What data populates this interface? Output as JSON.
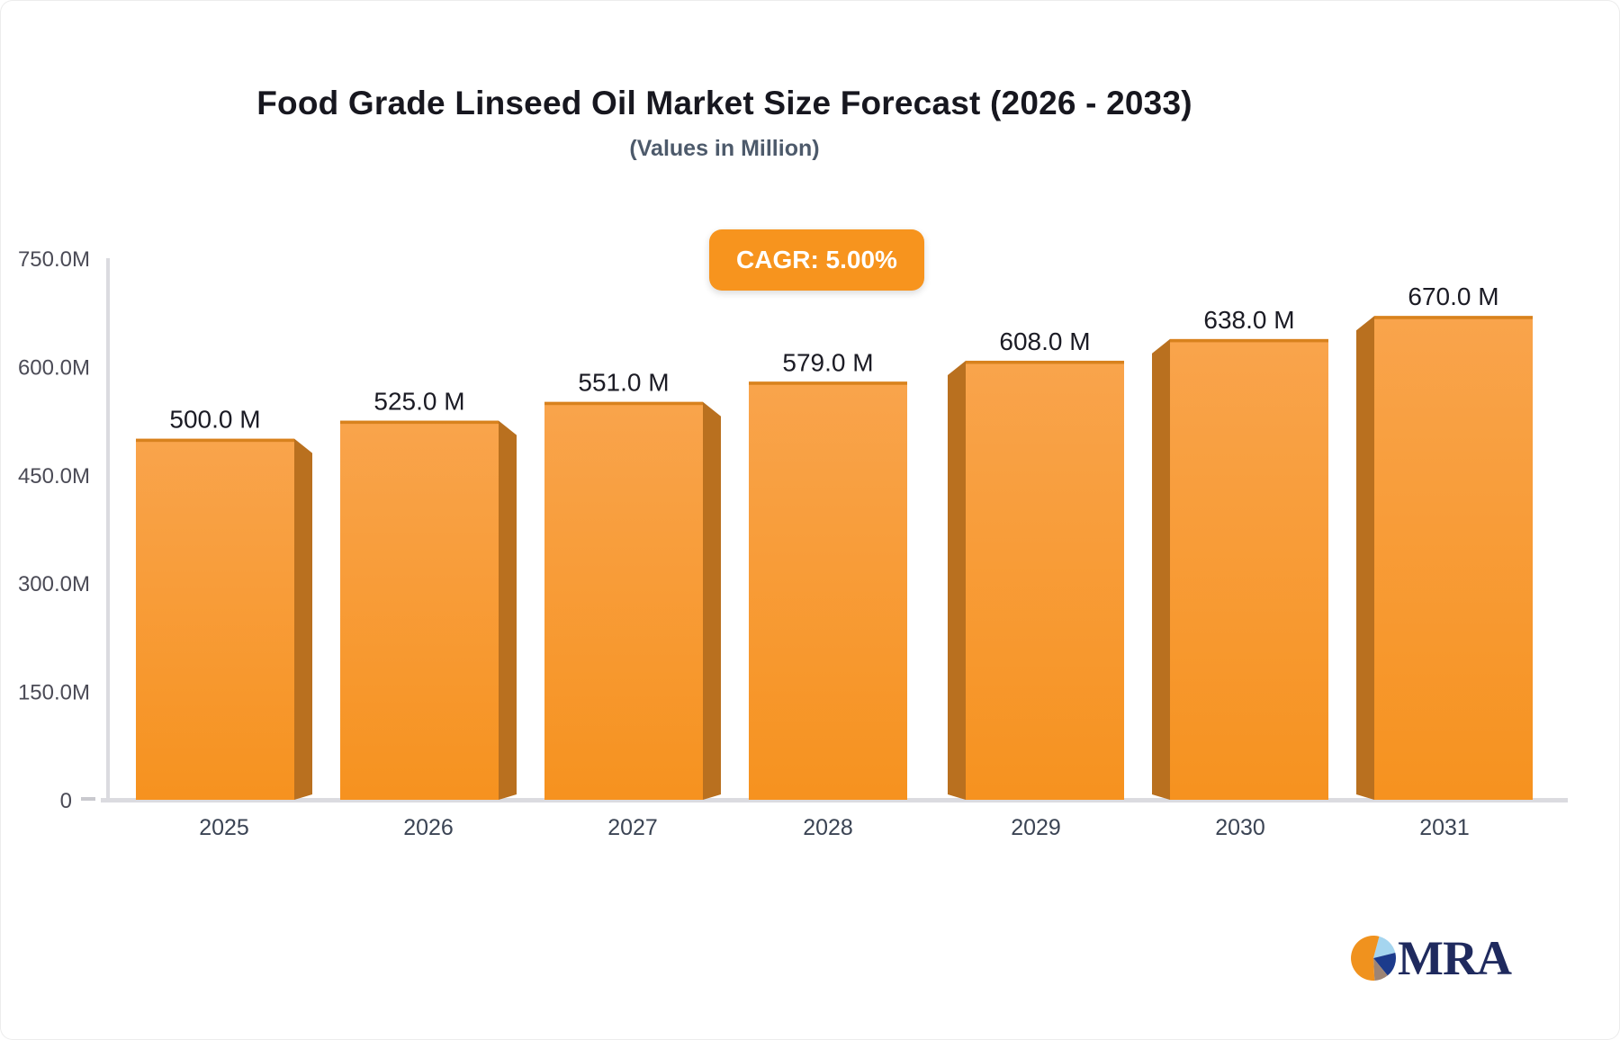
{
  "header": {
    "title": "Food Grade Linseed Oil Market Size Forecast (2026 - 2033)",
    "subtitle": "(Values in Million)",
    "cagr_badge": "CAGR: 5.00%",
    "badge_bg": "#F7941E",
    "badge_text_color": "#FFFFFF"
  },
  "chart_data": {
    "type": "bar",
    "title": "Food Grade Linseed Oil Market Size Forecast (2026 - 2033)",
    "subtitle": "(Values in Million)",
    "unit": "Million",
    "cagr_percent": "5.00",
    "categories": [
      "2025",
      "2026",
      "2027",
      "2028",
      "2029",
      "2030",
      "2031"
    ],
    "values": [
      500.0,
      525.0,
      551.0,
      579.0,
      608.0,
      638.0,
      670.0
    ],
    "value_labels": [
      "500.0 M",
      "525.0 M",
      "551.0 M",
      "579.0 M",
      "608.0 M",
      "638.0 M",
      "670.0 M"
    ],
    "xlabel": "",
    "ylabel": "",
    "ylim": [
      0,
      750
    ],
    "y_ticks": [
      {
        "value": 750,
        "label": "750.0M"
      },
      {
        "value": 600,
        "label": "600.0M"
      },
      {
        "value": 450,
        "label": "450.0M"
      },
      {
        "value": 300,
        "label": "300.0M"
      },
      {
        "value": 150,
        "label": "150.0M"
      },
      {
        "value": 0,
        "label": "0"
      }
    ],
    "grid": false,
    "legend": false,
    "bar_style": "3d-perspective",
    "colors": {
      "face_top": "#F9A44C",
      "face_bottom": "#F6921F",
      "top_edge": "#D8821E",
      "side": "#B9701F",
      "axis": "#DBDBE0",
      "zero_tick": "#C9C9CE",
      "y_tick_label": "#4B4B56",
      "x_tick_label": "#3B4454",
      "value_label": "#1B1B24"
    }
  },
  "logo": {
    "text": "MRA",
    "text_color": "#1F2A5E",
    "pie_start_angle": 15,
    "pie_slices": [
      {
        "name": "light-blue",
        "color": "#A5D5EF",
        "pct": 17
      },
      {
        "name": "navy",
        "color": "#1C3B8C",
        "pct": 18
      },
      {
        "name": "taupe",
        "color": "#9D8474",
        "pct": 10
      },
      {
        "name": "orange",
        "color": "#F0921E",
        "pct": 55
      }
    ]
  }
}
